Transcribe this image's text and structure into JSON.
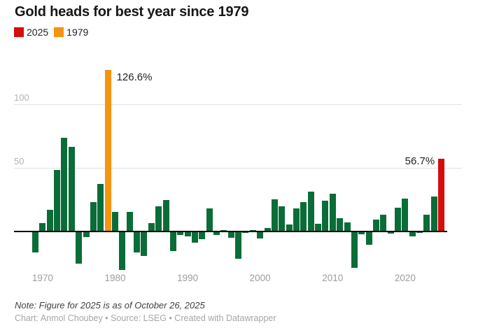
{
  "header": {
    "title": "Gold heads for best year since 1979"
  },
  "legend": {
    "items": [
      {
        "label": "2025",
        "color": "#d50d0d"
      },
      {
        "label": "1979",
        "color": "#f7940d"
      }
    ]
  },
  "chart_data": {
    "type": "bar",
    "title": "Gold heads for best year since 1979",
    "unit": "%",
    "x": [
      1969,
      1970,
      1971,
      1972,
      1973,
      1974,
      1975,
      1976,
      1977,
      1978,
      1979,
      1980,
      1981,
      1982,
      1983,
      1984,
      1985,
      1986,
      1987,
      1988,
      1989,
      1990,
      1991,
      1992,
      1993,
      1994,
      1995,
      1996,
      1997,
      1998,
      1999,
      2000,
      2001,
      2002,
      2003,
      2004,
      2005,
      2006,
      2007,
      2008,
      2009,
      2010,
      2011,
      2012,
      2013,
      2014,
      2015,
      2016,
      2017,
      2018,
      2019,
      2020,
      2021,
      2022,
      2023,
      2024,
      2025
    ],
    "values": [
      -16.0,
      6.3,
      16.7,
      48.3,
      73.5,
      66.1,
      -24.8,
      -4.1,
      22.6,
      37.0,
      126.6,
      15.2,
      -30.0,
      14.9,
      -16.0,
      -19.1,
      6.5,
      19.5,
      24.5,
      -15.3,
      -2.5,
      -3.5,
      -8.6,
      -5.7,
      17.7,
      -2.2,
      1.0,
      -4.6,
      -21.4,
      -0.8,
      0.9,
      -5.4,
      2.5,
      24.8,
      19.5,
      5.5,
      18.0,
      23.0,
      31.1,
      5.6,
      24.2,
      29.5,
      10.1,
      7.0,
      -28.0,
      -1.8,
      -10.4,
      9.0,
      13.1,
      -1.6,
      18.3,
      25.4,
      -3.6,
      -0.3,
      13.1,
      27.2,
      56.7
    ],
    "bar_color_default": "#0a6d38",
    "highlights": [
      {
        "year": 1979,
        "color": "#f7940d"
      },
      {
        "year": 2025,
        "color": "#d50d0d"
      }
    ],
    "yticks": [
      50,
      100
    ],
    "xticks": [
      1970,
      1980,
      1990,
      2000,
      2010,
      2020
    ],
    "ylim": [
      -35,
      135
    ],
    "grid": "horizontal",
    "legend_position": "top-left",
    "annotations": [
      {
        "year": 1979,
        "label": "126.6%",
        "side": "right"
      },
      {
        "year": 2025,
        "label": "56.7%",
        "side": "left"
      }
    ]
  },
  "footer": {
    "note": "Note: Figure for 2025 is as of October 26, 2025",
    "credits": "Chart: Anmol Choubey • Source: LSEG • Created with Datawrapper"
  }
}
